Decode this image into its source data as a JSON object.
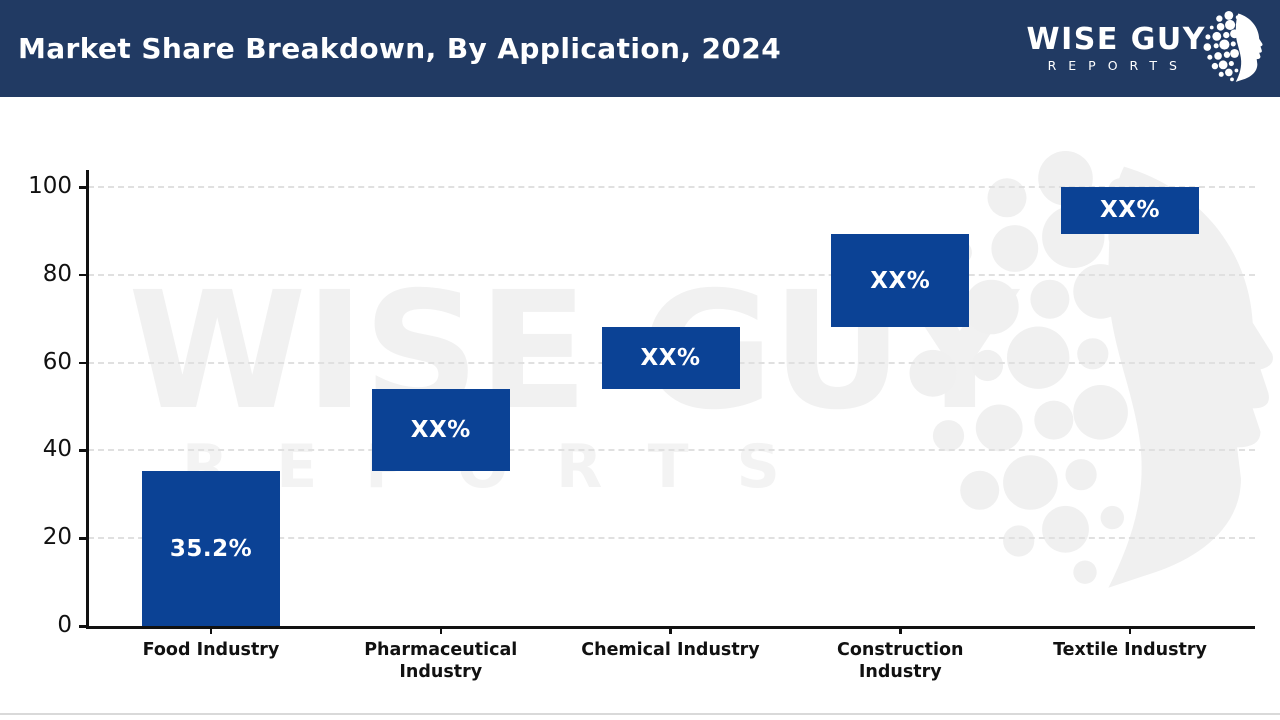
{
  "header": {
    "title": "Market Share Breakdown, By Application, 2024",
    "bg_color": "#213a63",
    "logo_line1": "WISE GUY",
    "logo_line2": "REPORTS"
  },
  "watermark": {
    "line1": "WISE GUY",
    "line2": "REPORTS"
  },
  "chart_data": {
    "type": "bar",
    "subtype": "waterfall (floating cumulative bars)",
    "title": "Market Share Breakdown, By Application, 2024",
    "categories": [
      "Food Industry",
      "Pharmaceutical\nIndustry",
      "Chemical Industry",
      "Construction\nIndustry",
      "Textile Industry"
    ],
    "segments": [
      {
        "category": "Food Industry",
        "start": 0,
        "end": 35.2,
        "label": "35.2%"
      },
      {
        "category": "Pharmaceutical Industry",
        "start": 35.2,
        "end": 54.0,
        "label": "XX%"
      },
      {
        "category": "Chemical Industry",
        "start": 54.0,
        "end": 68.1,
        "label": "XX%"
      },
      {
        "category": "Construction Industry",
        "start": 68.1,
        "end": 89.3,
        "label": "XX%"
      },
      {
        "category": "Textile Industry",
        "start": 89.3,
        "end": 100,
        "label": "XX%"
      }
    ],
    "xlabel": "",
    "ylabel": "",
    "ylim": [
      0,
      100
    ],
    "yticks": [
      0,
      20,
      40,
      60,
      80,
      100
    ],
    "grid": "horizontal dashed",
    "legend": "none",
    "bar_color": "#0b4295",
    "bar_label_color": "#ffffff",
    "axis_color": "#111111",
    "gridline_color": "#e0e0e0"
  }
}
